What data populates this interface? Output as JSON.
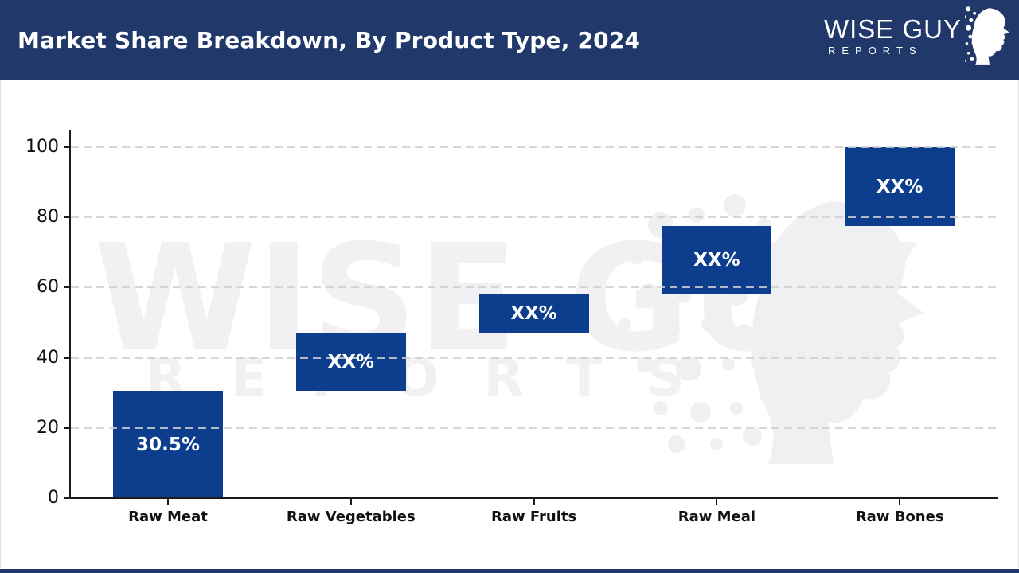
{
  "header": {
    "title": "Market Share Breakdown, By Product Type, 2024",
    "logo_line1": "WISE GUY",
    "logo_line2": "REPORTS"
  },
  "watermark": {
    "line1": "WISE GUY",
    "line2": "REPORTS"
  },
  "colors": {
    "header_bg": "#21386b",
    "bar": "#0d3d8d",
    "bar_label": "#ffffff",
    "grid": "#d6d6d6",
    "axis": "#1a1a1a",
    "tick_text": "#111111"
  },
  "chart_data": {
    "type": "bar",
    "subtype": "stacked-waterfall-percentage",
    "title": "Market Share Breakdown, By Product Type, 2024",
    "categories": [
      "Raw Meat",
      "Raw Vegetables",
      "Raw Fruits",
      "Raw Meal",
      "Raw Bones"
    ],
    "segments": [
      {
        "category": "Raw Meat",
        "start": 0,
        "end": 30.5,
        "label": "30.5%"
      },
      {
        "category": "Raw Vegetables",
        "start": 30.5,
        "end": 47,
        "label": "XX%"
      },
      {
        "category": "Raw Fruits",
        "start": 47,
        "end": 58,
        "label": "XX%"
      },
      {
        "category": "Raw Meal",
        "start": 58,
        "end": 77.5,
        "label": "XX%"
      },
      {
        "category": "Raw Bones",
        "start": 77.5,
        "end": 100,
        "label": "XX%"
      }
    ],
    "y_ticks": [
      0,
      20,
      40,
      60,
      80,
      100
    ],
    "ylim": [
      0,
      105
    ],
    "xlabel": "",
    "ylabel": "",
    "grid": "horizontal dashed",
    "legend": "none",
    "bar_color": "#0d3d8d",
    "value_label_color": "#ffffff"
  }
}
